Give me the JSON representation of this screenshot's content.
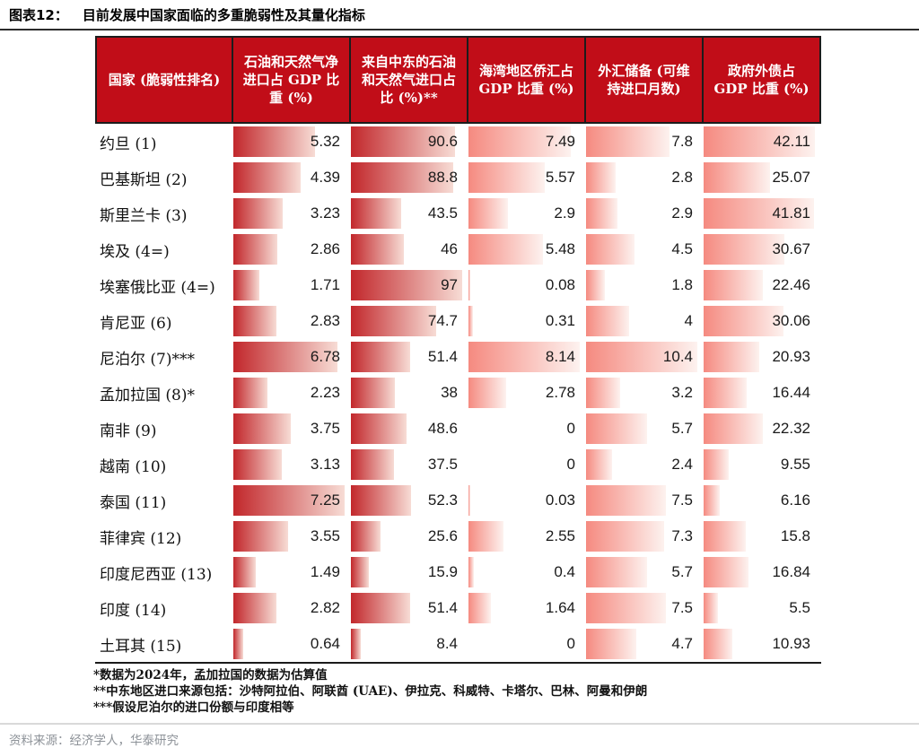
{
  "title": {
    "prefix": "图表12：",
    "text": "目前发展中国家面临的多重脆弱性及其量化指标"
  },
  "table": {
    "columns": [
      {
        "key": "country",
        "label": "国家 (脆弱性排名)"
      },
      {
        "key": "oil-gas-net-import-gdp",
        "label": "石油和天然气净进口占 GDP 比重 (%)",
        "max": 7.25,
        "palette": "dark"
      },
      {
        "key": "middle-east-import-share",
        "label": "来自中东的石油和天然气进口占比 (%)**",
        "max": 97,
        "palette": "dark"
      },
      {
        "key": "gulf-remittances-gdp",
        "label": "海湾地区侨汇占 GDP 比重 (%)",
        "max": 8.14,
        "palette": "light"
      },
      {
        "key": "fx-reserves-months",
        "label": "外汇储备 (可维持进口月数)",
        "max": 10.4,
        "palette": "light"
      },
      {
        "key": "gov-external-debt-gdp",
        "label": "政府外债占 GDP 比重 (%)",
        "max": 42.11,
        "palette": "light"
      }
    ],
    "rows": [
      {
        "country": "约旦 (1)",
        "values": [
          "5.32",
          "90.6",
          "7.49",
          "7.8",
          "42.11"
        ]
      },
      {
        "country": "巴基斯坦 (2)",
        "values": [
          "4.39",
          "88.8",
          "5.57",
          "2.8",
          "25.07"
        ]
      },
      {
        "country": "斯里兰卡 (3)",
        "values": [
          "3.23",
          "43.5",
          "2.9",
          "2.9",
          "41.81"
        ]
      },
      {
        "country": "埃及 (4=)",
        "values": [
          "2.86",
          "46",
          "5.48",
          "4.5",
          "30.67"
        ]
      },
      {
        "country": "埃塞俄比亚 (4=)",
        "values": [
          "1.71",
          "97",
          "0.08",
          "1.8",
          "22.46"
        ]
      },
      {
        "country": "肯尼亚 (6)",
        "values": [
          "2.83",
          "74.7",
          "0.31",
          "4",
          "30.06"
        ]
      },
      {
        "country": "尼泊尔 (7)***",
        "values": [
          "6.78",
          "51.4",
          "8.14",
          "10.4",
          "20.93"
        ]
      },
      {
        "country": "孟加拉国 (8)*",
        "values": [
          "2.23",
          "38",
          "2.78",
          "3.2",
          "16.44"
        ]
      },
      {
        "country": "南非 (9)",
        "values": [
          "3.75",
          "48.6",
          "0",
          "5.7",
          "22.32"
        ]
      },
      {
        "country": "越南 (10)",
        "values": [
          "3.13",
          "37.5",
          "0",
          "2.4",
          "9.55"
        ]
      },
      {
        "country": "泰国 (11)",
        "values": [
          "7.25",
          "52.3",
          "0.03",
          "7.5",
          "6.16"
        ]
      },
      {
        "country": "菲律宾 (12)",
        "values": [
          "3.55",
          "25.6",
          "2.55",
          "7.3",
          "15.8"
        ]
      },
      {
        "country": "印度尼西亚 (13)",
        "values": [
          "1.49",
          "15.9",
          "0.4",
          "5.7",
          "16.84"
        ]
      },
      {
        "country": "印度 (14)",
        "values": [
          "2.82",
          "51.4",
          "1.64",
          "7.5",
          "5.5"
        ]
      },
      {
        "country": "土耳其 (15)",
        "values": [
          "0.64",
          "8.4",
          "0",
          "4.7",
          "10.93"
        ]
      }
    ]
  },
  "footnotes": [
    "*数据为2024年，孟加拉国的数据为估算值",
    "**中东地区进口来源包括：沙特阿拉伯、阿联酋 (UAE)、伊拉克、科威特、卡塔尔、巴林、阿曼和伊朗",
    "***假设尼泊尔的进口份额与印度相等"
  ],
  "source": "资料来源：经济学人，华泰研究",
  "colors": {
    "header_bg": "#c10d18",
    "header_text": "#ffffff",
    "header_border": "#1c1c1c",
    "bar_dark_start": "#c2272b",
    "bar_dark_end": "#f7dcd5",
    "bar_light_start": "#f58a80",
    "bar_light_end": "#fdf2ef",
    "value_text": "#1a1a1a",
    "source_text": "#8d9298"
  },
  "chart_data": {
    "type": "table",
    "title": "目前发展中国家面临的多重脆弱性及其量化指标",
    "categories": [
      "约旦 (1)",
      "巴基斯坦 (2)",
      "斯里兰卡 (3)",
      "埃及 (4=)",
      "埃塞俄比亚 (4=)",
      "肯尼亚 (6)",
      "尼泊尔 (7)***",
      "孟加拉国 (8)*",
      "南非 (9)",
      "越南 (10)",
      "泰国 (11)",
      "菲律宾 (12)",
      "印度尼西亚 (13)",
      "印度 (14)",
      "土耳其 (15)"
    ],
    "series": [
      {
        "name": "石油和天然气净进口占 GDP 比重 (%)",
        "values": [
          5.32,
          4.39,
          3.23,
          2.86,
          1.71,
          2.83,
          6.78,
          2.23,
          3.75,
          3.13,
          7.25,
          3.55,
          1.49,
          2.82,
          0.64
        ]
      },
      {
        "name": "来自中东的石油和天然气进口占比 (%)**",
        "values": [
          90.6,
          88.8,
          43.5,
          46,
          97,
          74.7,
          51.4,
          38,
          48.6,
          37.5,
          52.3,
          25.6,
          15.9,
          51.4,
          8.4
        ]
      },
      {
        "name": "海湾地区侨汇占 GDP 比重 (%)",
        "values": [
          7.49,
          5.57,
          2.9,
          5.48,
          0.08,
          0.31,
          8.14,
          2.78,
          0,
          0,
          0.03,
          2.55,
          0.4,
          1.64,
          0
        ]
      },
      {
        "name": "外汇储备 (可维持进口月数)",
        "values": [
          7.8,
          2.8,
          2.9,
          4.5,
          1.8,
          4,
          10.4,
          3.2,
          5.7,
          2.4,
          7.5,
          7.3,
          5.7,
          7.5,
          4.7
        ]
      },
      {
        "name": "政府外债占 GDP 比重 (%)",
        "values": [
          42.11,
          25.07,
          41.81,
          30.67,
          22.46,
          30.06,
          20.93,
          16.44,
          22.32,
          9.55,
          6.16,
          15.8,
          16.84,
          5.5,
          10.93
        ]
      }
    ],
    "layout": {
      "bars": "in-cell horizontal data bars, length = value / column max",
      "legend": "none",
      "grid": false
    }
  }
}
